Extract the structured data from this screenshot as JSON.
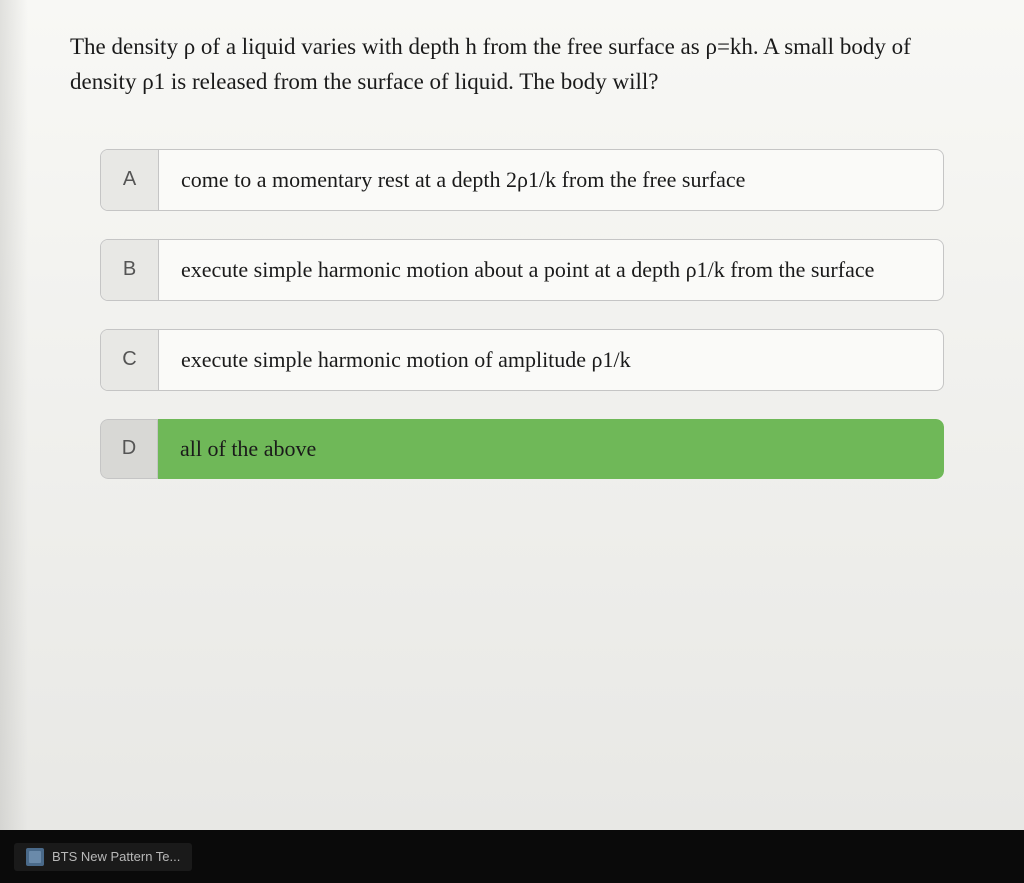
{
  "question": {
    "text": "The density ρ of a liquid varies with depth h from the free surface as ρ=kh. A small body of density ρ1 is released from the surface of liquid. The body will?",
    "font_size": 23,
    "color": "#1a1a1a"
  },
  "options": [
    {
      "label": "A",
      "text": "come to a momentary rest at a depth 2ρ1/k from the free surface",
      "selected": false
    },
    {
      "label": "B",
      "text": "execute simple harmonic motion about a point at a depth ρ1/k from the surface",
      "selected": false
    },
    {
      "label": "C",
      "text": "execute simple harmonic motion of amplitude ρ1/k",
      "selected": false
    },
    {
      "label": "D",
      "text": "all of the above",
      "selected": true
    }
  ],
  "styling": {
    "screen_background": "#f8f8f5",
    "option_border_color": "#c5c5c5",
    "option_background": "#fafaf8",
    "option_label_background": "#e8e8e5",
    "option_label_color": "#555555",
    "selected_background": "#6fb858",
    "option_font_size": 22,
    "label_font_size": 20,
    "border_radius": 8
  },
  "taskbar": {
    "background_color": "#0a0a0a",
    "item_text": "BTS New Pattern Te...",
    "item_color": "#b8b8b8"
  }
}
